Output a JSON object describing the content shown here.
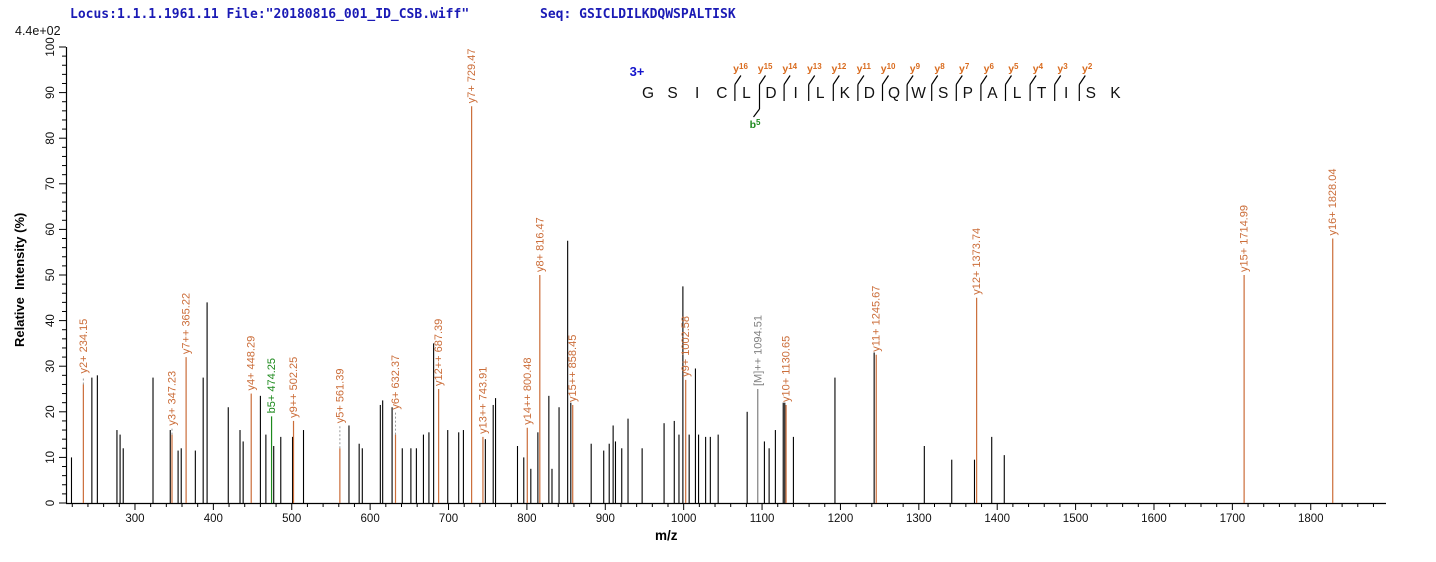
{
  "header": {
    "locus_text": "Locus:1.1.1.1961.11 File:\"20180816_001_ID_CSB.wiff\"",
    "seq_text": "Seq: GSICLDILKDQWSPALTISK",
    "max_intensity_label": "4.4e+02"
  },
  "axes": {
    "x_label": "m/z",
    "y_label": "Relative  Intensity (%)"
  },
  "sequence_annotation": {
    "charge_label": "3+",
    "residues": [
      "G",
      "S",
      "I",
      "C",
      "L",
      "D",
      "I",
      "L",
      "K",
      "D",
      "Q",
      "W",
      "S",
      "P",
      "A",
      "L",
      "T",
      "I",
      "S",
      "K"
    ],
    "y_ion_marks": [
      {
        "residue_index": 5,
        "label": "y16"
      },
      {
        "residue_index": 6,
        "label": "y15"
      },
      {
        "residue_index": 7,
        "label": "y14"
      },
      {
        "residue_index": 8,
        "label": "y13"
      },
      {
        "residue_index": 9,
        "label": "y12"
      },
      {
        "residue_index": 10,
        "label": "y11"
      },
      {
        "residue_index": 11,
        "label": "y10"
      },
      {
        "residue_index": 12,
        "label": "y9"
      },
      {
        "residue_index": 13,
        "label": "y8"
      },
      {
        "residue_index": 14,
        "label": "y7"
      },
      {
        "residue_index": 15,
        "label": "y6"
      },
      {
        "residue_index": 16,
        "label": "y5"
      },
      {
        "residue_index": 17,
        "label": "y4"
      },
      {
        "residue_index": 18,
        "label": "y3"
      },
      {
        "residue_index": 19,
        "label": "y2"
      }
    ],
    "b_ion_marks": [
      {
        "residue_index": 6,
        "label": "b5"
      }
    ]
  },
  "chart_data": {
    "type": "bar",
    "title": "MS/MS fragment spectrum",
    "xlabel": "m/z",
    "ylabel": "Relative  Intensity (%)",
    "x_range": [
      212,
      1896
    ],
    "y_range": [
      0,
      100
    ],
    "x_major_tick_step": 100,
    "x_minor_tick_step": 20,
    "x_tick_labels": [
      300,
      400,
      500,
      600,
      700,
      800,
      900,
      1000,
      1100,
      1200,
      1300,
      1400,
      1500,
      1600,
      1700,
      1800
    ],
    "y_major_tick_step": 10,
    "y_minor_tick_step": 2,
    "y_tick_labels": [
      0,
      10,
      20,
      30,
      40,
      50,
      60,
      70,
      80,
      90,
      100
    ],
    "max_intensity_counts": "4.4e+02",
    "labeled_peaks": [
      {
        "label": "y2+ 234.15",
        "mz": 234.15,
        "intensity": 26,
        "type": "y",
        "dash": 8
      },
      {
        "label": "y3+ 347.23",
        "mz": 347.23,
        "intensity": 15,
        "type": "y",
        "dash": 6
      },
      {
        "label": "y7++ 365.22",
        "mz": 365.22,
        "intensity": 32,
        "type": "y",
        "dash": 0
      },
      {
        "label": "y4+ 448.29",
        "mz": 448.29,
        "intensity": 24,
        "type": "y",
        "dash": 0
      },
      {
        "label": "b5+ 474.25",
        "mz": 474.25,
        "intensity": 19,
        "type": "b",
        "dash": 0
      },
      {
        "label": "y9++ 502.25",
        "mz": 502.25,
        "intensity": 18,
        "type": "y",
        "dash": 0
      },
      {
        "label": "y5+ 561.39",
        "mz": 561.39,
        "intensity": 12,
        "type": "y",
        "dash": 22
      },
      {
        "label": "y6+ 632.37",
        "mz": 632.37,
        "intensity": 15,
        "type": "y",
        "dash": 22
      },
      {
        "label": "y12++ 687.39",
        "mz": 687.39,
        "intensity": 25,
        "type": "y",
        "dash": 0
      },
      {
        "label": "y7+ 729.47",
        "mz": 729.47,
        "intensity": 100,
        "type": "y",
        "dash": 0,
        "solid_pct": 87
      },
      {
        "label": "y13++ 743.91",
        "mz": 743.91,
        "intensity": 14.5,
        "type": "y",
        "dash": 0
      },
      {
        "label": "y14++ 800.48",
        "mz": 800.48,
        "intensity": 16.5,
        "type": "y",
        "dash": 0
      },
      {
        "label": "y8+ 816.47",
        "mz": 816.47,
        "intensity": 50,
        "type": "y",
        "dash": 0
      },
      {
        "label": "y15++ 858.45",
        "mz": 858.45,
        "intensity": 21.5,
        "type": "y",
        "dash": 0
      },
      {
        "label": "y9+ 1002.58",
        "mz": 1002.58,
        "intensity": 27,
        "type": "y",
        "dash": 0
      },
      {
        "label": "[M]++ 1094.51",
        "mz": 1094.51,
        "intensity": 25,
        "type": "precursor",
        "dash": 0
      },
      {
        "label": "y10+ 1130.65",
        "mz": 1130.65,
        "intensity": 21.5,
        "type": "y",
        "dash": 0
      },
      {
        "label": "y11+ 1245.67",
        "mz": 1245.67,
        "intensity": 32.5,
        "type": "y",
        "dash": 0
      },
      {
        "label": "y12+ 1373.74",
        "mz": 1373.74,
        "intensity": 45,
        "type": "y",
        "dash": 0
      },
      {
        "label": "y15+ 1714.99",
        "mz": 1714.99,
        "intensity": 50,
        "type": "y",
        "dash": 0
      },
      {
        "label": "y16+ 1828.04",
        "mz": 1828.04,
        "intensity": 58,
        "type": "y",
        "dash": 0
      }
    ],
    "unlabeled_peaks": [
      [
        219,
        10
      ],
      [
        245,
        27.5
      ],
      [
        252,
        28
      ],
      [
        277,
        16
      ],
      [
        281,
        15
      ],
      [
        285,
        12
      ],
      [
        323,
        27.5
      ],
      [
        345,
        16
      ],
      [
        355,
        11.5
      ],
      [
        359,
        12
      ],
      [
        377,
        11.5
      ],
      [
        387,
        27.5
      ],
      [
        392,
        44
      ],
      [
        419,
        21
      ],
      [
        434,
        16
      ],
      [
        438,
        13.5
      ],
      [
        460,
        23.5
      ],
      [
        467,
        15
      ],
      [
        477,
        12.5
      ],
      [
        486,
        14.5
      ],
      [
        501,
        14.5
      ],
      [
        515,
        16
      ],
      [
        573,
        17
      ],
      [
        586,
        13
      ],
      [
        590,
        12
      ],
      [
        613,
        21.5
      ],
      [
        616,
        22.5
      ],
      [
        628,
        21
      ],
      [
        641,
        12
      ],
      [
        652,
        12
      ],
      [
        659,
        12
      ],
      [
        668,
        15
      ],
      [
        675,
        15.5
      ],
      [
        681,
        35
      ],
      [
        699,
        16
      ],
      [
        713,
        15.5
      ],
      [
        719,
        16
      ],
      [
        747,
        14
      ],
      [
        757,
        21.5
      ],
      [
        760,
        23
      ],
      [
        788,
        12.5
      ],
      [
        796,
        10
      ],
      [
        805,
        7.5
      ],
      [
        814,
        15.5
      ],
      [
        828,
        23.5
      ],
      [
        832,
        7.5
      ],
      [
        841,
        21
      ],
      [
        852,
        57.5
      ],
      [
        856,
        22
      ],
      [
        882,
        13
      ],
      [
        898,
        11.5
      ],
      [
        905,
        13
      ],
      [
        910,
        17
      ],
      [
        913,
        13.5
      ],
      [
        921,
        12
      ],
      [
        929,
        18.5
      ],
      [
        947,
        12
      ],
      [
        975,
        17.5
      ],
      [
        988,
        18
      ],
      [
        994,
        15
      ],
      [
        999,
        47.5
      ],
      [
        1007,
        15
      ],
      [
        1015,
        29.5
      ],
      [
        1019,
        15
      ],
      [
        1028,
        14.5
      ],
      [
        1034,
        14.5
      ],
      [
        1044,
        15
      ],
      [
        1081,
        20
      ],
      [
        1103,
        13.5
      ],
      [
        1109,
        12
      ],
      [
        1117,
        16
      ],
      [
        1127,
        22
      ],
      [
        1129,
        22
      ],
      [
        1140,
        14.5
      ],
      [
        1193,
        27.5
      ],
      [
        1243,
        33
      ],
      [
        1307,
        12.5
      ],
      [
        1342,
        9.5
      ],
      [
        1371,
        9.5
      ],
      [
        1393,
        14.5
      ],
      [
        1409,
        10.5
      ]
    ]
  },
  "colors": {
    "y_ion": "#CB6D39",
    "b_ion": "#1D8A1D",
    "precursor": "#808080",
    "peak": "#000000",
    "header_blue": "#1A1AB5",
    "charge_blue": "#1414CC",
    "seq_letter": "#111111"
  }
}
